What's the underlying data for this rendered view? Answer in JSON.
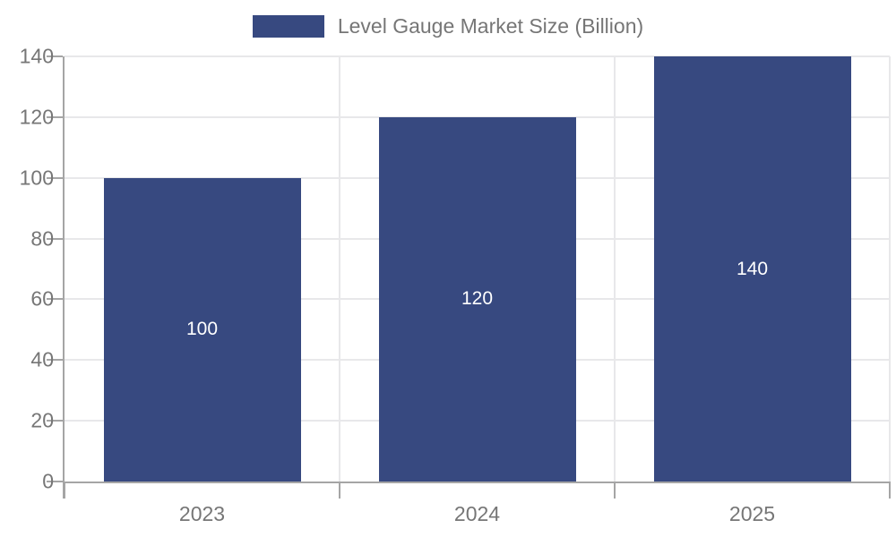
{
  "legend": {
    "label": "Level Gauge Market Size (Billion)"
  },
  "colors": {
    "bar": "#374980",
    "bar_label_text": "#ffffff",
    "axis_line": "#a5a5a5",
    "grid_line": "#e8e8ea",
    "tick_text": "#767676",
    "legend_text": "#767676",
    "background": "#ffffff"
  },
  "chart_data": {
    "type": "bar",
    "title": "",
    "xlabel": "",
    "ylabel": "",
    "categories": [
      "2023",
      "2024",
      "2025"
    ],
    "series": [
      {
        "name": "Level Gauge Market Size (Billion)",
        "values": [
          100,
          120,
          140
        ],
        "data_labels": [
          "100",
          "120",
          "140"
        ]
      }
    ],
    "ylim": [
      0,
      140
    ],
    "ytick_step": 20,
    "yticks": [
      0,
      20,
      40,
      60,
      80,
      100,
      120,
      140
    ],
    "grid": true,
    "legend_position": "top-center",
    "bar_label_position": "inside-center"
  }
}
